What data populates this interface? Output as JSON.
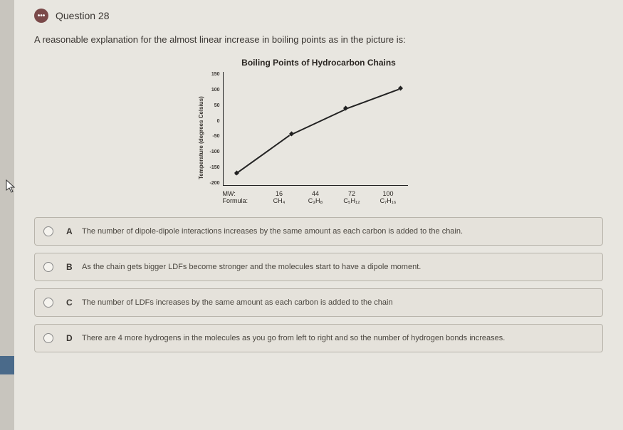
{
  "question": {
    "icon_text": "•••",
    "number_label": "Question 28",
    "prompt": "A reasonable explanation for the almost linear increase in boiling points as in the picture is:"
  },
  "chart": {
    "type": "scatter-line",
    "title": "Boiling Points of Hydrocarbon Chains",
    "ylabel": "Temperature (degrees Celsius)",
    "ylim": [
      -200,
      150
    ],
    "ytick_step": 50,
    "yticks": [
      "150",
      "100",
      "50",
      "0",
      "-50",
      "-100",
      "-150",
      "-200"
    ],
    "background_color": "#e8e6e0",
    "axis_color": "#222222",
    "point_color": "#222222",
    "line_color": "#222222",
    "data": [
      {
        "x": 16,
        "y": -162
      },
      {
        "x": 44,
        "y": -42
      },
      {
        "x": 72,
        "y": 36
      },
      {
        "x": 100,
        "y": 98
      }
    ],
    "xaxis_rows": [
      {
        "label": "MW:",
        "values": [
          "16",
          "44",
          "72",
          "100"
        ]
      },
      {
        "label": "Formula:",
        "values": [
          "CH₄",
          "C₃H₈",
          "C₅H₁₂",
          "C₇H₁₆"
        ]
      }
    ]
  },
  "answers": [
    {
      "letter": "A",
      "text": "The number of dipole-dipole interactions increases by the same amount as each carbon is added to the chain."
    },
    {
      "letter": "B",
      "text": "As the chain gets bigger LDFs become stronger and the molecules start to have a dipole moment."
    },
    {
      "letter": "C",
      "text": "The number of LDFs increases by the same amount as each carbon is added to the chain"
    },
    {
      "letter": "D",
      "text": "There are 4 more hydrogens in the molecules as you go from left to right and so the number of hydrogen bonds increases."
    }
  ],
  "colors": {
    "page_bg": "#e8e6e0",
    "outer_bg": "#c8c5be",
    "icon_bg": "#7a4949",
    "border": "#b8b4ab",
    "sidebar_tab": "#4a6a8a"
  }
}
